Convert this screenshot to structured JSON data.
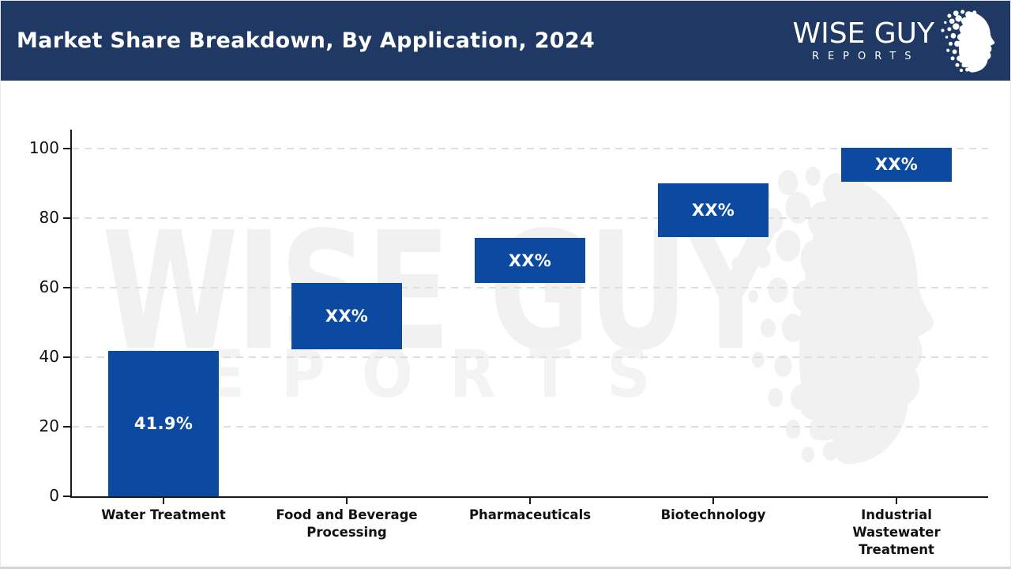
{
  "header": {
    "title": "Market Share Breakdown, By Application, 2024",
    "logo": {
      "line1": "WISE GUY",
      "line2": "REPORTS"
    }
  },
  "watermark": {
    "line1": "WISE GUY",
    "line2": "REPORTS"
  },
  "colors": {
    "header_bg": "#1f3864",
    "bar_blue": "#0b4aa0",
    "bar_label": "#ffffff",
    "gridline": "#dedede",
    "axis": "#1a1a1a",
    "watermark": "#f1f1f1"
  },
  "chart_data": {
    "type": "bar",
    "subtype": "waterfall",
    "title": "Market Share Breakdown, By Application, 2024",
    "categories": [
      "Water Treatment",
      "Food and Beverage Processing",
      "Pharmaceuticals",
      "Biotechnology",
      "Industrial Wastewater Treatment"
    ],
    "segments": [
      {
        "start": 0,
        "end": 41.9,
        "label": "41.9%"
      },
      {
        "start": 42.3,
        "end": 61.4,
        "label": "XX%"
      },
      {
        "start": 61.4,
        "end": 74.3,
        "label": "XX%"
      },
      {
        "start": 74.5,
        "end": 90.0,
        "label": "XX%"
      },
      {
        "start": 90.5,
        "end": 100.3,
        "label": "XX%"
      }
    ],
    "yticks": [
      0,
      20,
      40,
      60,
      80,
      100
    ],
    "ylim": [
      0,
      105.5
    ],
    "xlabel": "",
    "ylabel": "",
    "grid": "horizontal-dashed",
    "legend": "none",
    "bar_color": "#0b4aa0",
    "label_color": "#ffffff"
  }
}
